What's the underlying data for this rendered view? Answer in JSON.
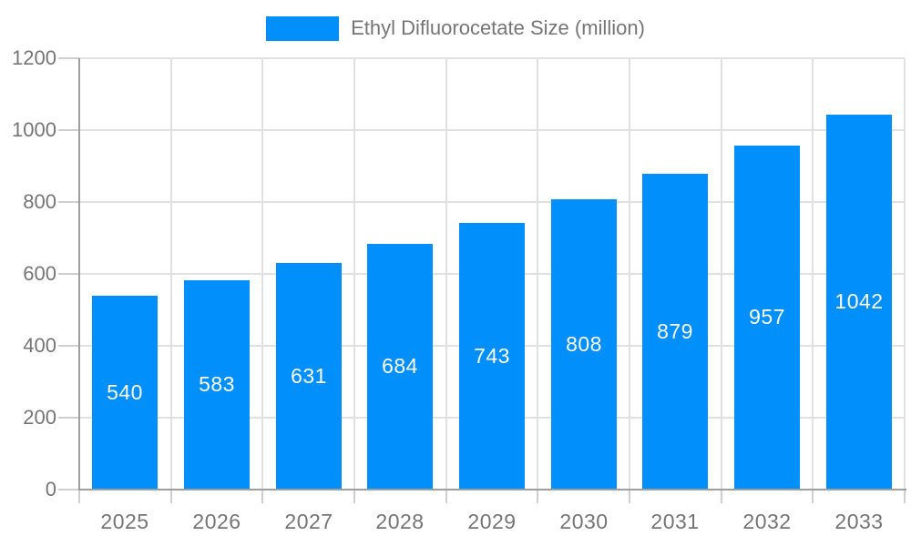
{
  "legend": {
    "label": "Ethyl Difluorocetate Size (million)"
  },
  "chart_data": {
    "type": "bar",
    "title": "Ethyl Difluorocetate Size (million)",
    "categories": [
      "2025",
      "2026",
      "2027",
      "2028",
      "2029",
      "2030",
      "2031",
      "2032",
      "2033"
    ],
    "values": [
      540,
      583,
      631,
      684,
      743,
      808,
      879,
      957,
      1042
    ],
    "series": [
      {
        "name": "Ethyl Difluorocetate Size (million)",
        "values": [
          540,
          583,
          631,
          684,
          743,
          808,
          879,
          957,
          1042
        ]
      }
    ],
    "xlabel": "",
    "ylabel": "",
    "ylim": [
      0,
      1200
    ],
    "yticks": [
      1200,
      1000,
      800,
      600,
      400,
      200,
      0
    ],
    "grid": true,
    "legend_position": "top-center",
    "value_label_position": "inside-center",
    "colors": {
      "bar": "#008ffb",
      "axis_text": "#757575",
      "grid": "#e0e0e0",
      "tick": "#cfcfcf",
      "axis_line": "#9e9e9e",
      "value_label": "#ffffff",
      "background": "#ffffff"
    }
  }
}
